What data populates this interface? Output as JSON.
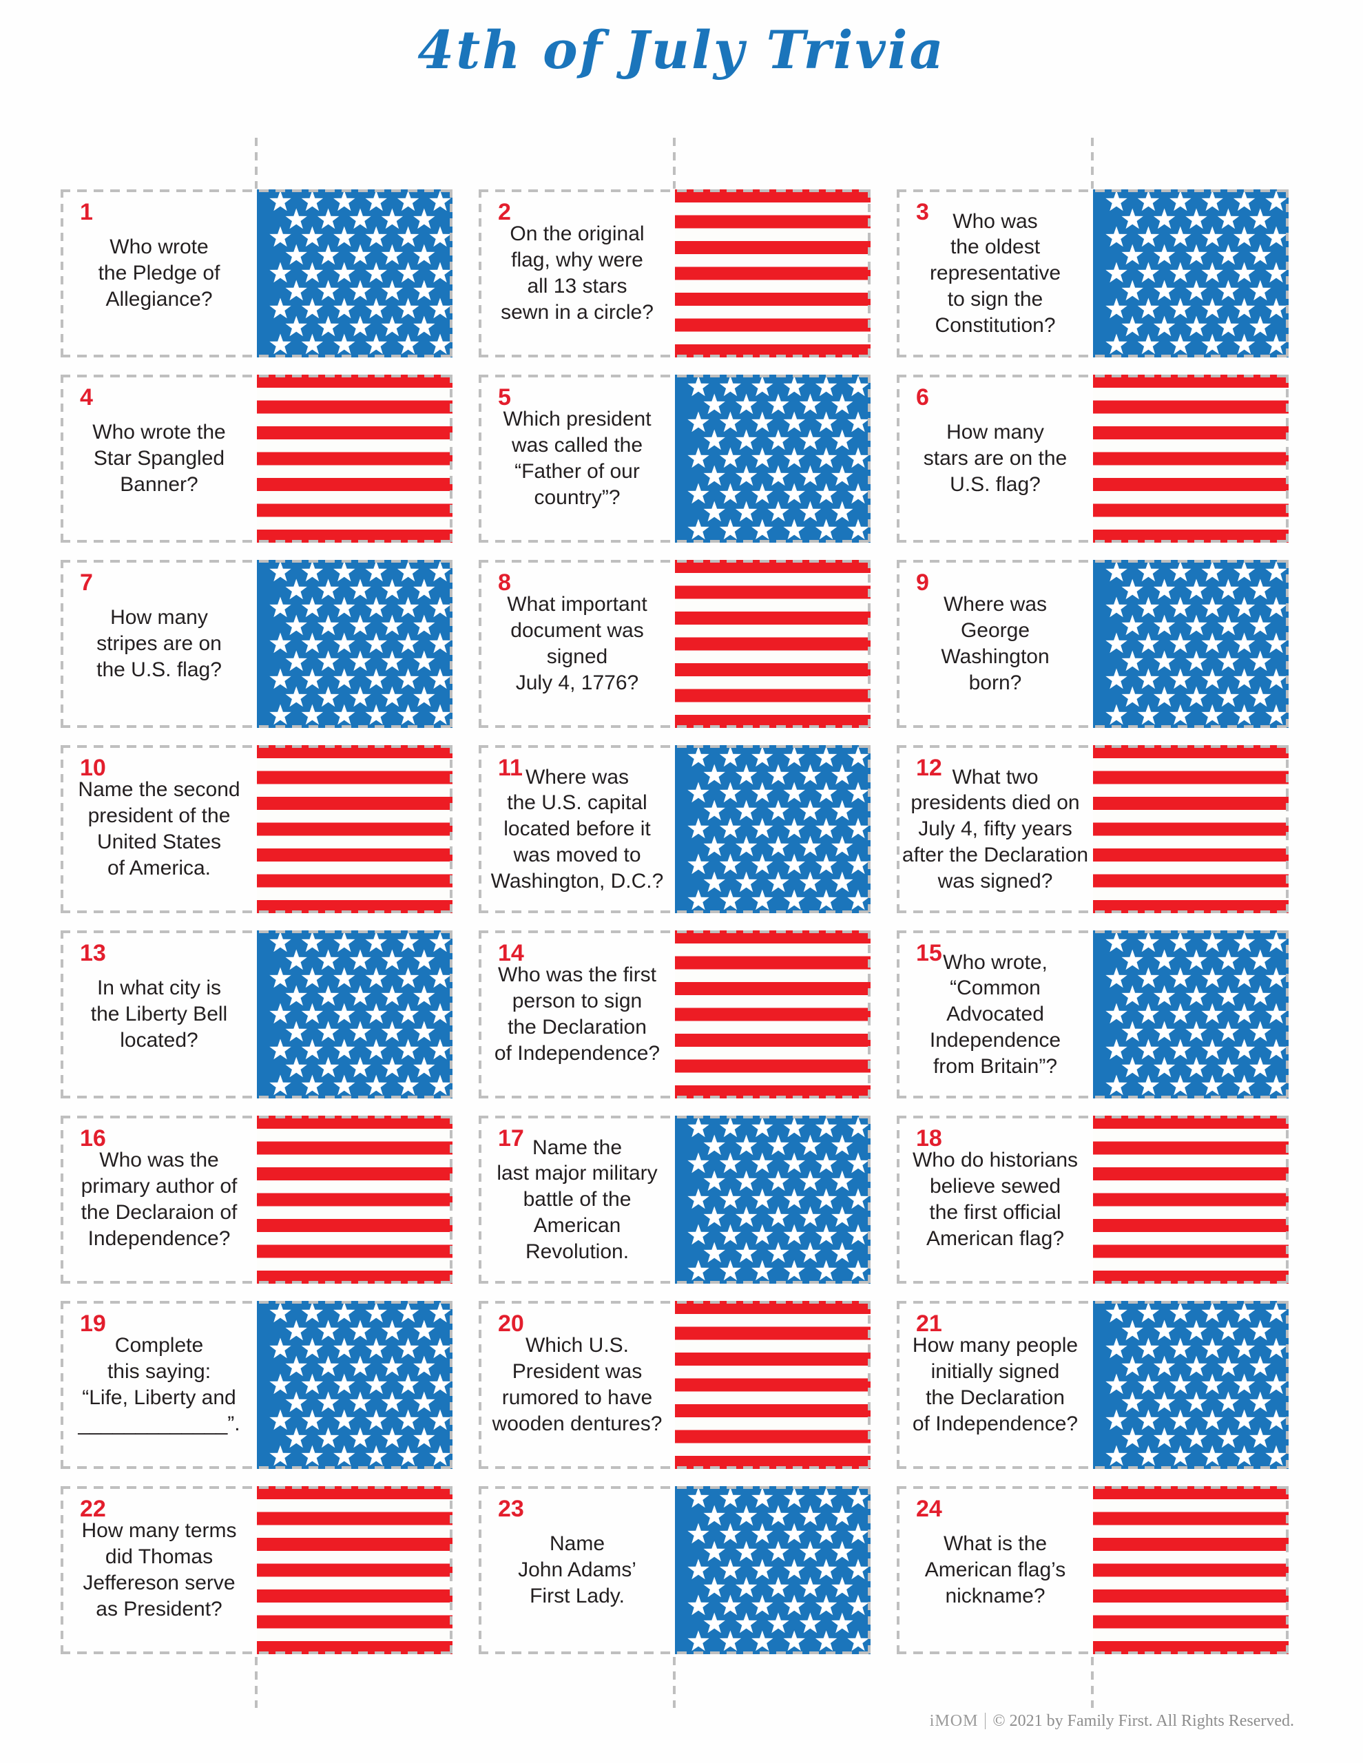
{
  "page": {
    "title": "4th of July Trivia",
    "footer": {
      "brand": "iMOM",
      "copyright": "© 2021 by Family First. All Rights Reserved."
    }
  },
  "colors": {
    "flag_blue": "#1b75bb",
    "stripe_red": "#ed1c24",
    "number_red": "#e31e2d",
    "question_text": "#231f20",
    "cut_line_gray": "#bfbfbf"
  },
  "cards": [
    {
      "number": "1",
      "question": "Who wrote\nthe Pledge of\nAllegiance?",
      "flag": "stars"
    },
    {
      "number": "2",
      "question": "On the original\nflag, why were\nall 13 stars\nsewn in a circle?",
      "flag": "stripes"
    },
    {
      "number": "3",
      "question": "Who was\nthe oldest\nrepresentative\nto sign the\nConstitution?",
      "flag": "stars"
    },
    {
      "number": "4",
      "question": "Who wrote the\nStar Spangled\nBanner?",
      "flag": "stripes"
    },
    {
      "number": "5",
      "question": "Which president\nwas called the\n“Father of our\ncountry”?",
      "flag": "stars"
    },
    {
      "number": "6",
      "question": "How many\nstars are on the\nU.S. flag?",
      "flag": "stripes"
    },
    {
      "number": "7",
      "question": "How many\nstripes are on\nthe U.S. flag?",
      "flag": "stars"
    },
    {
      "number": "8",
      "question": "What important\ndocument was\nsigned\nJuly 4, 1776?",
      "flag": "stripes"
    },
    {
      "number": "9",
      "question": "Where was\nGeorge\nWashington\nborn?",
      "flag": "stars"
    },
    {
      "number": "10",
      "question": "Name the second\npresident of the\nUnited States\nof America.",
      "flag": "stripes"
    },
    {
      "number": "11",
      "question": "Where was\nthe U.S. capital\nlocated before it\nwas moved to\nWashington, D.C.?",
      "flag": "stars"
    },
    {
      "number": "12",
      "question": "What two\npresidents died on\nJuly 4, fifty years\nafter the Declaration\nwas signed?",
      "flag": "stripes"
    },
    {
      "number": "13",
      "question": "In what city is\nthe Liberty Bell\nlocated?",
      "flag": "stars"
    },
    {
      "number": "14",
      "question": "Who was the first\nperson to sign\nthe Declaration\nof Independence?",
      "flag": "stripes"
    },
    {
      "number": "15",
      "question": "Who wrote,\n“Common\nAdvocated\nIndependence\nfrom Britain”?",
      "flag": "stars"
    },
    {
      "number": "16",
      "question": "Who was the\nprimary author of\nthe Declaraion of\nIndependence?",
      "flag": "stripes"
    },
    {
      "number": "17",
      "question": "Name the\nlast major military\nbattle of the\nAmerican\nRevolution.",
      "flag": "stars"
    },
    {
      "number": "18",
      "question": "Who do historians\nbelieve sewed\nthe first official\nAmerican flag?",
      "flag": "stripes"
    },
    {
      "number": "19",
      "question": "Complete\nthis saying:\n“Life, Liberty and\n_____________”.",
      "flag": "stars"
    },
    {
      "number": "20",
      "question": "Which U.S.\nPresident was\nrumored to have\nwooden dentures?",
      "flag": "stripes"
    },
    {
      "number": "21",
      "question": "How many people\ninitially signed\nthe Declaration\nof Independence?",
      "flag": "stars"
    },
    {
      "number": "22",
      "question": "How many terms\ndid Thomas\nJeffereson serve\nas President?",
      "flag": "stripes"
    },
    {
      "number": "23",
      "question": "Name\nJohn Adams’\nFirst Lady.",
      "flag": "stars"
    },
    {
      "number": "24",
      "question": "What is the\nAmerican flag’s\nnickname?",
      "flag": "stripes"
    }
  ],
  "layout_hints": {
    "columns": 3,
    "rows": 8,
    "stars_rows_pattern": "6-5 alternating, 9 rows (50 stars)",
    "stripes_count": 13
  }
}
